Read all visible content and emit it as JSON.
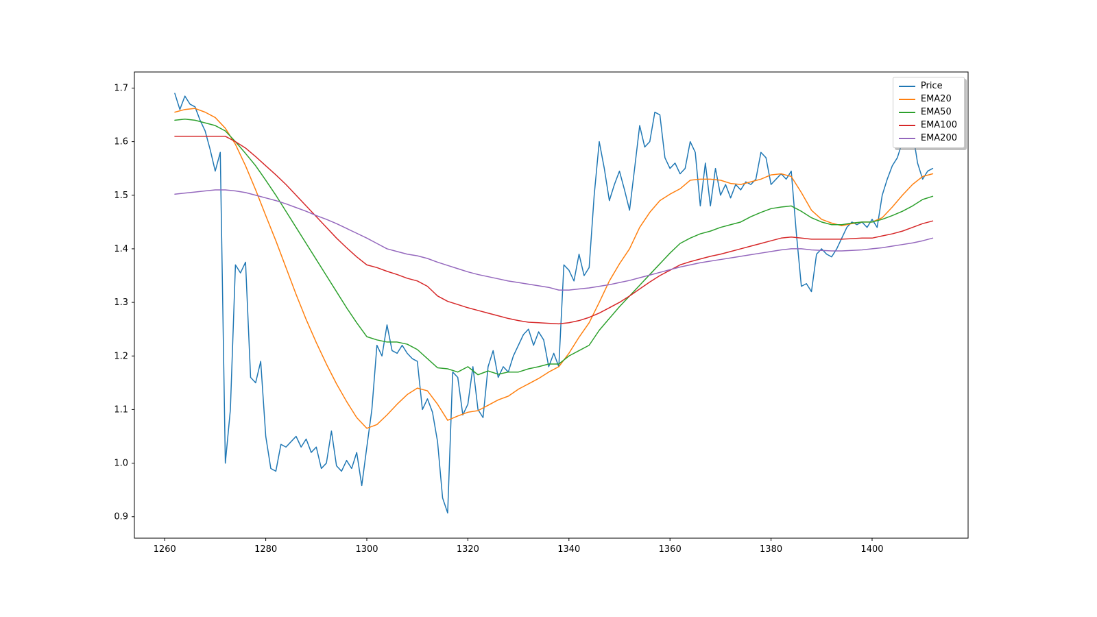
{
  "figure": {
    "background": "#ffffff",
    "plot_border_color": "#000000"
  },
  "chart_data": {
    "type": "line",
    "title": "",
    "xlabel": "",
    "ylabel": "",
    "grid": false,
    "legend_position": "upper right",
    "xlim": [
      1254,
      1419
    ],
    "ylim": [
      0.86,
      1.73
    ],
    "xticks": [
      1260,
      1280,
      1300,
      1320,
      1340,
      1360,
      1380,
      1400
    ],
    "yticks": [
      0.9,
      1.0,
      1.1,
      1.2,
      1.3,
      1.4,
      1.5,
      1.6,
      1.7
    ],
    "series": [
      {
        "name": "Price",
        "color": "#1f77b4",
        "x0": 1262,
        "dx": 1,
        "y": [
          1.69,
          1.66,
          1.685,
          1.67,
          1.665,
          1.64,
          1.62,
          1.585,
          1.545,
          1.58,
          1.0,
          1.1,
          1.37,
          1.355,
          1.375,
          1.16,
          1.15,
          1.19,
          1.05,
          0.99,
          0.985,
          1.035,
          1.03,
          1.04,
          1.05,
          1.03,
          1.045,
          1.02,
          1.03,
          0.99,
          1.0,
          1.06,
          0.995,
          0.985,
          1.005,
          0.99,
          1.02,
          0.958,
          1.03,
          1.1,
          1.22,
          1.2,
          1.258,
          1.21,
          1.205,
          1.22,
          1.205,
          1.195,
          1.19,
          1.1,
          1.12,
          1.095,
          1.04,
          0.935,
          0.907,
          1.17,
          1.16,
          1.09,
          1.11,
          1.18,
          1.1,
          1.085,
          1.18,
          1.21,
          1.16,
          1.18,
          1.17,
          1.2,
          1.22,
          1.24,
          1.25,
          1.22,
          1.245,
          1.23,
          1.18,
          1.205,
          1.18,
          1.37,
          1.36,
          1.34,
          1.39,
          1.35,
          1.365,
          1.5,
          1.6,
          1.55,
          1.49,
          1.52,
          1.545,
          1.51,
          1.472,
          1.55,
          1.63,
          1.59,
          1.6,
          1.655,
          1.65,
          1.57,
          1.55,
          1.56,
          1.54,
          1.55,
          1.6,
          1.58,
          1.48,
          1.56,
          1.48,
          1.55,
          1.5,
          1.52,
          1.495,
          1.52,
          1.51,
          1.525,
          1.52,
          1.53,
          1.58,
          1.57,
          1.52,
          1.53,
          1.54,
          1.53,
          1.545,
          1.43,
          1.33,
          1.335,
          1.32,
          1.39,
          1.4,
          1.39,
          1.385,
          1.4,
          1.42,
          1.44,
          1.45,
          1.445,
          1.45,
          1.44,
          1.455,
          1.44,
          1.5,
          1.53,
          1.555,
          1.57,
          1.6,
          1.615,
          1.62,
          1.56,
          1.53,
          1.545,
          1.55
        ]
      },
      {
        "name": "EMA20",
        "color": "#ff7f0e",
        "x0": 1262,
        "dx": 2,
        "y": [
          1.655,
          1.66,
          1.662,
          1.655,
          1.645,
          1.625,
          1.595,
          1.555,
          1.51,
          1.462,
          1.415,
          1.365,
          1.315,
          1.268,
          1.225,
          1.185,
          1.148,
          1.115,
          1.085,
          1.065,
          1.072,
          1.09,
          1.11,
          1.128,
          1.14,
          1.135,
          1.11,
          1.08,
          1.088,
          1.095,
          1.098,
          1.108,
          1.118,
          1.125,
          1.138,
          1.148,
          1.158,
          1.17,
          1.18,
          1.205,
          1.235,
          1.262,
          1.3,
          1.34,
          1.372,
          1.4,
          1.44,
          1.468,
          1.49,
          1.502,
          1.512,
          1.528,
          1.53,
          1.53,
          1.528,
          1.522,
          1.52,
          1.525,
          1.53,
          1.538,
          1.54,
          1.535,
          1.505,
          1.472,
          1.455,
          1.448,
          1.443,
          1.447,
          1.45,
          1.45,
          1.458,
          1.478,
          1.5,
          1.52,
          1.535,
          1.54
        ]
      },
      {
        "name": "EMA50",
        "color": "#2ca02c",
        "x0": 1262,
        "dx": 2,
        "y": [
          1.64,
          1.642,
          1.64,
          1.635,
          1.63,
          1.62,
          1.6,
          1.578,
          1.555,
          1.528,
          1.5,
          1.47,
          1.44,
          1.41,
          1.38,
          1.35,
          1.32,
          1.29,
          1.262,
          1.236,
          1.23,
          1.226,
          1.226,
          1.222,
          1.212,
          1.195,
          1.178,
          1.176,
          1.17,
          1.18,
          1.165,
          1.172,
          1.166,
          1.17,
          1.17,
          1.176,
          1.18,
          1.185,
          1.185,
          1.2,
          1.21,
          1.22,
          1.248,
          1.27,
          1.292,
          1.312,
          1.332,
          1.352,
          1.372,
          1.392,
          1.41,
          1.42,
          1.428,
          1.433,
          1.44,
          1.445,
          1.45,
          1.46,
          1.468,
          1.475,
          1.478,
          1.48,
          1.47,
          1.458,
          1.45,
          1.445,
          1.445,
          1.448,
          1.45,
          1.45,
          1.455,
          1.462,
          1.47,
          1.48,
          1.492,
          1.498
        ]
      },
      {
        "name": "EMA100",
        "color": "#d62728",
        "x0": 1262,
        "dx": 2,
        "y": [
          1.61,
          1.61,
          1.61,
          1.61,
          1.61,
          1.61,
          1.6,
          1.588,
          1.572,
          1.555,
          1.538,
          1.52,
          1.5,
          1.48,
          1.46,
          1.44,
          1.42,
          1.402,
          1.385,
          1.37,
          1.365,
          1.358,
          1.352,
          1.345,
          1.34,
          1.33,
          1.312,
          1.302,
          1.296,
          1.29,
          1.285,
          1.28,
          1.275,
          1.27,
          1.266,
          1.263,
          1.262,
          1.261,
          1.26,
          1.262,
          1.266,
          1.272,
          1.28,
          1.29,
          1.3,
          1.312,
          1.325,
          1.338,
          1.35,
          1.36,
          1.37,
          1.376,
          1.381,
          1.386,
          1.39,
          1.395,
          1.4,
          1.405,
          1.41,
          1.415,
          1.42,
          1.422,
          1.42,
          1.418,
          1.418,
          1.418,
          1.418,
          1.419,
          1.42,
          1.42,
          1.424,
          1.428,
          1.433,
          1.44,
          1.447,
          1.452
        ]
      },
      {
        "name": "EMA200",
        "color": "#9467bd",
        "x0": 1262,
        "dx": 2,
        "y": [
          1.502,
          1.504,
          1.506,
          1.508,
          1.51,
          1.51,
          1.508,
          1.505,
          1.5,
          1.495,
          1.49,
          1.484,
          1.477,
          1.47,
          1.462,
          1.455,
          1.447,
          1.438,
          1.429,
          1.42,
          1.41,
          1.4,
          1.395,
          1.39,
          1.387,
          1.382,
          1.375,
          1.369,
          1.363,
          1.357,
          1.352,
          1.348,
          1.344,
          1.34,
          1.337,
          1.334,
          1.331,
          1.328,
          1.323,
          1.323,
          1.325,
          1.327,
          1.33,
          1.333,
          1.337,
          1.341,
          1.346,
          1.351,
          1.356,
          1.361,
          1.366,
          1.37,
          1.374,
          1.377,
          1.38,
          1.383,
          1.386,
          1.389,
          1.392,
          1.395,
          1.398,
          1.4,
          1.4,
          1.398,
          1.397,
          1.396,
          1.396,
          1.397,
          1.398,
          1.4,
          1.402,
          1.405,
          1.408,
          1.411,
          1.415,
          1.42
        ]
      }
    ]
  }
}
